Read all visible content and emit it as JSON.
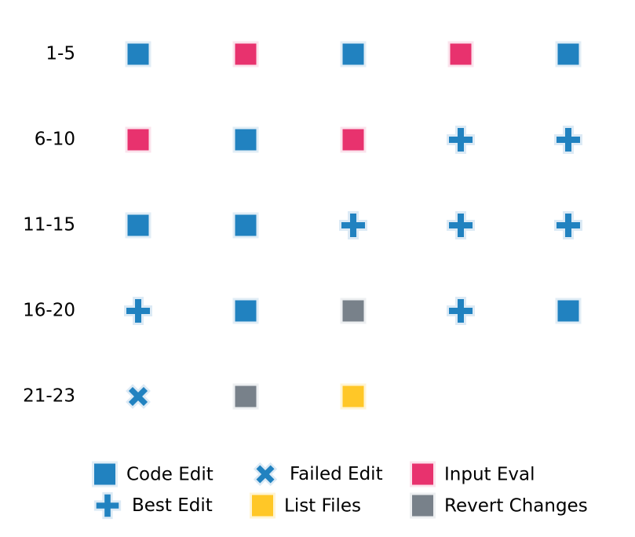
{
  "chart_data": {
    "type": "scatter",
    "description": "Categorical marker matrix: action type per step-range (rows 1-5 ... 21-23) across 5 slots",
    "row_axis_labels": [
      "1-5",
      "6-10",
      "11-15",
      "16-20",
      "21-23"
    ],
    "rows": [
      {
        "label": "1-5",
        "markers": [
          "code_edit",
          "input_eval",
          "code_edit",
          "input_eval",
          "code_edit"
        ]
      },
      {
        "label": "6-10",
        "markers": [
          "input_eval",
          "code_edit",
          "input_eval",
          "best_edit",
          "best_edit"
        ]
      },
      {
        "label": "11-15",
        "markers": [
          "code_edit",
          "code_edit",
          "best_edit",
          "best_edit",
          "best_edit"
        ]
      },
      {
        "label": "16-20",
        "markers": [
          "best_edit",
          "code_edit",
          "revert_changes",
          "best_edit",
          "code_edit"
        ]
      },
      {
        "label": "21-23",
        "markers": [
          "failed_edit",
          "revert_changes",
          "list_files",
          null,
          null
        ]
      }
    ],
    "marker_styles": {
      "code_edit": {
        "shape": "square",
        "color": "#2182c0",
        "edge": "#e1edf6",
        "label": "Code Edit"
      },
      "failed_edit": {
        "shape": "x",
        "color": "#2182c0",
        "edge": "#dceaf5",
        "label": "Failed Edit"
      },
      "input_eval": {
        "shape": "square",
        "color": "#e8326e",
        "edge": "#fbe3ec",
        "label": "Input Eval"
      },
      "best_edit": {
        "shape": "plus",
        "color": "#2182c0",
        "edge": "#dceaf5",
        "label": "Best Edit"
      },
      "list_files": {
        "shape": "square",
        "color": "#ffc727",
        "edge": "#fff4d4",
        "label": "List Files"
      },
      "revert_changes": {
        "shape": "square",
        "color": "#78818a",
        "edge": "#edeff1",
        "label": "Revert Changes"
      }
    },
    "legend": {
      "position": "bottom",
      "rows": [
        [
          "code_edit",
          "failed_edit",
          "input_eval"
        ],
        [
          "best_edit",
          "list_files",
          "revert_changes"
        ]
      ]
    },
    "grid": "off",
    "background": "#ffffff"
  }
}
